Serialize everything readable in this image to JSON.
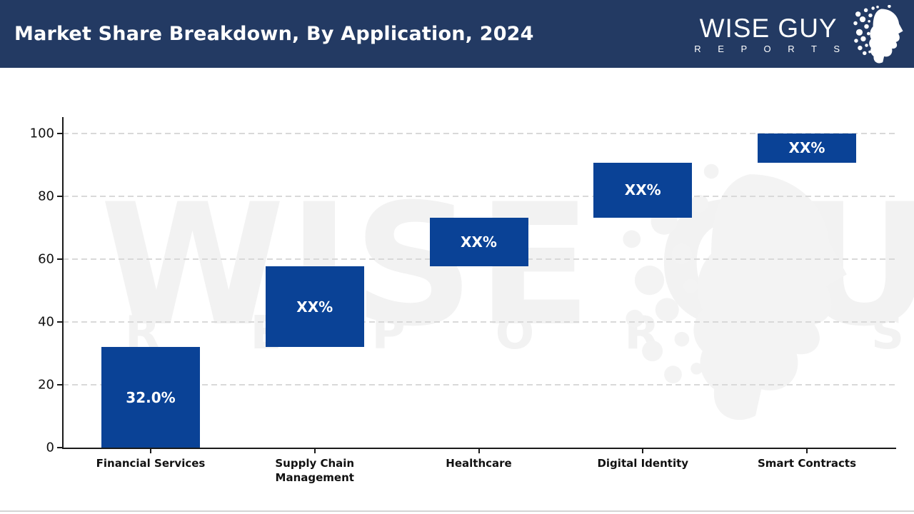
{
  "header": {
    "title": "Market Share Breakdown, By Application, 2024",
    "logo": {
      "line1": "WISE GUY",
      "line2": "R E P O R T S"
    }
  },
  "watermark": {
    "line1": "WISE GUY",
    "line2": "R E P O R T S"
  },
  "chart_data": {
    "type": "bar",
    "subtype": "waterfall",
    "title": "Market Share Breakdown, By Application, 2024",
    "categories": [
      "Financial Services",
      "Supply Chain Management",
      "Healthcare",
      "Digital Identity",
      "Smart Contracts"
    ],
    "segments": [
      {
        "category": "Financial Services",
        "start": 0.0,
        "end": 32.0,
        "value": 32.0,
        "value_label": "32.0%"
      },
      {
        "category": "Supply Chain Management",
        "start": 32.0,
        "end": 57.7,
        "value": 25.7,
        "value_label": "XX%"
      },
      {
        "category": "Healthcare",
        "start": 57.7,
        "end": 73.2,
        "value": 15.5,
        "value_label": "XX%"
      },
      {
        "category": "Digital Identity",
        "start": 73.2,
        "end": 90.7,
        "value": 17.5,
        "value_label": "XX%"
      },
      {
        "category": "Smart Contracts",
        "start": 90.7,
        "end": 100.0,
        "value": 9.3,
        "value_label": "XX%"
      }
    ],
    "yticks": [
      0,
      20,
      40,
      60,
      80,
      100
    ],
    "ylim": [
      0,
      105
    ],
    "xlabel": "",
    "ylabel": "",
    "grid": "horizontal-dashed",
    "legend": "none",
    "bar_color": "#0a4296",
    "grid_color": "#d9d9d9",
    "axis_color": "#1a1a1a",
    "label_color": "#ffffff"
  }
}
